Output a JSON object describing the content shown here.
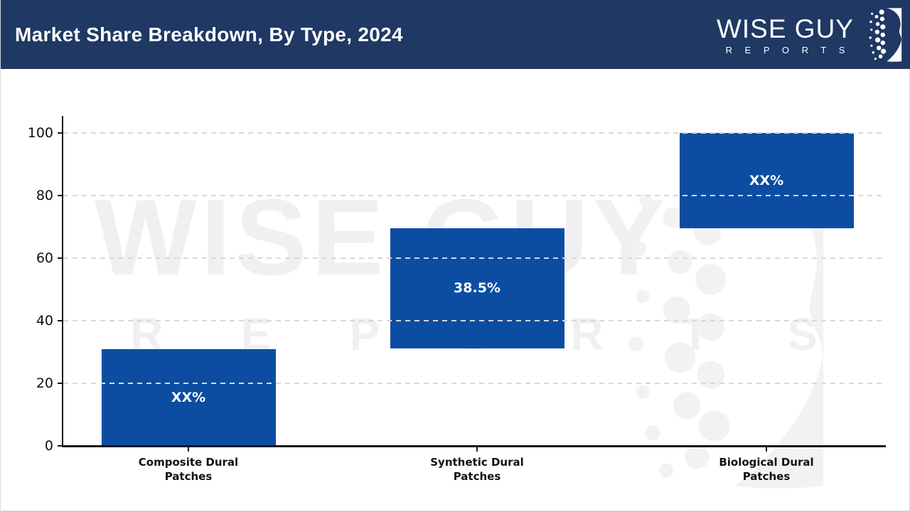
{
  "header": {
    "title": "Market Share Breakdown, By Type, 2024",
    "bg_color": "#1f3864",
    "logo": {
      "line1": "WISE GUY",
      "line2": "R E P O R T S",
      "icon": "dot-face-profile"
    }
  },
  "watermark": {
    "line1": "WISE GUY",
    "line2": "R E P O R T S",
    "color": "#f0f0f3"
  },
  "chart_data": {
    "type": "bar",
    "variant": "floating-segment-waterfall",
    "title": "Market Share Breakdown, By Type, 2024",
    "categories": [
      "Composite Dural Patches",
      "Synthetic Dural Patches",
      "Biological Dural Patches"
    ],
    "category_lines": [
      [
        "Composite Dural",
        "Patches"
      ],
      [
        "Synthetic Dural",
        "Patches"
      ],
      [
        "Biological Dural",
        "Patches"
      ]
    ],
    "series": [
      {
        "name": "Market Share (%)",
        "segments": [
          {
            "category": "Composite Dural Patches",
            "from": 0,
            "to": 31,
            "label": "XX%"
          },
          {
            "category": "Synthetic Dural Patches",
            "from": 31,
            "to": 69.5,
            "label": "38.5%"
          },
          {
            "category": "Biological Dural Patches",
            "from": 69.5,
            "to": 100,
            "label": "XX%"
          }
        ]
      }
    ],
    "bar_labels": [
      "XX%",
      "38.5%",
      "XX%"
    ],
    "yticks": [
      0,
      20,
      40,
      60,
      80,
      100
    ],
    "ylim": [
      0,
      105.5
    ],
    "xlabel": "",
    "ylabel": "",
    "grid": "horizontal-dashed",
    "legend": "none",
    "bar_color": "#0c4da2",
    "grid_color": "#d8d8d8",
    "axis_color": "#151515",
    "tick_label_color": "#111111",
    "value_label_color": "#ffffff"
  }
}
